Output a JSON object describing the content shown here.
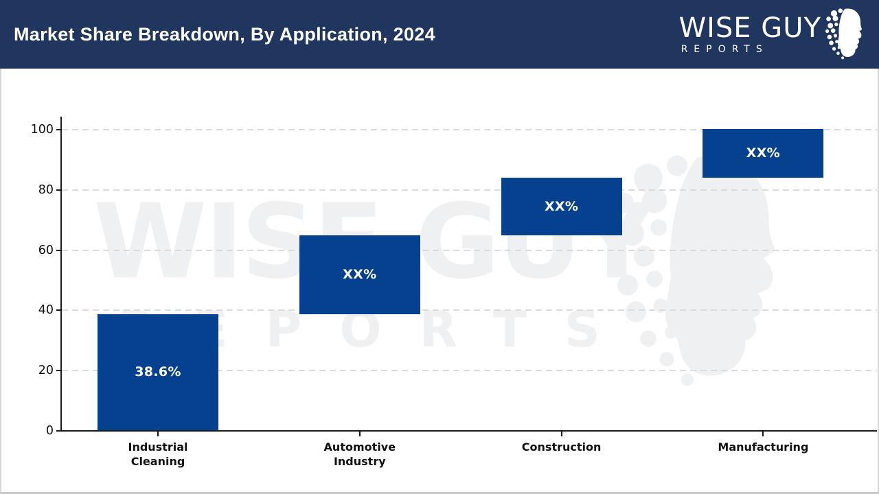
{
  "header": {
    "title": "Market Share Breakdown, By Application, 2024",
    "bg_color": "#20365f",
    "logo": {
      "wordmark": "WISE GUY",
      "subtitle": "REPORTS"
    }
  },
  "watermark": {
    "wordmark": "WISE GUY",
    "subtitle": "REPORTS"
  },
  "chart_data": {
    "type": "bar",
    "subtype": "floating-segment waterfall bars",
    "title": "Market Share Breakdown, By Application, 2024",
    "categories": [
      "Industrial Cleaning",
      "Automotive Industry",
      "Construction",
      "Manufacturing"
    ],
    "category_label_lines": [
      [
        "Industrial",
        "Cleaning"
      ],
      [
        "Automotive",
        "Industry"
      ],
      [
        "Construction"
      ],
      [
        "Manufacturing"
      ]
    ],
    "bars": [
      {
        "category": "Industrial Cleaning",
        "start": 0,
        "end": 38.6,
        "label": "38.6%"
      },
      {
        "category": "Automotive Industry",
        "start": 38.6,
        "end": 64.6,
        "label": "XX%"
      },
      {
        "category": "Construction",
        "start": 64.6,
        "end": 83.9,
        "label": "XX%"
      },
      {
        "category": "Manufacturing",
        "start": 83.9,
        "end": 100,
        "label": "XX%"
      }
    ],
    "xlabel": "",
    "ylabel": "",
    "ylim": [
      0,
      105
    ],
    "yticks": [
      0,
      20,
      40,
      60,
      80,
      100
    ],
    "grid": "horizontal dashed",
    "legend": "none",
    "bar_color": "#05418f",
    "bar_label_color": "#ffffff",
    "axis_color": "#1a1a1a",
    "grid_color": "#dbdbdb"
  }
}
